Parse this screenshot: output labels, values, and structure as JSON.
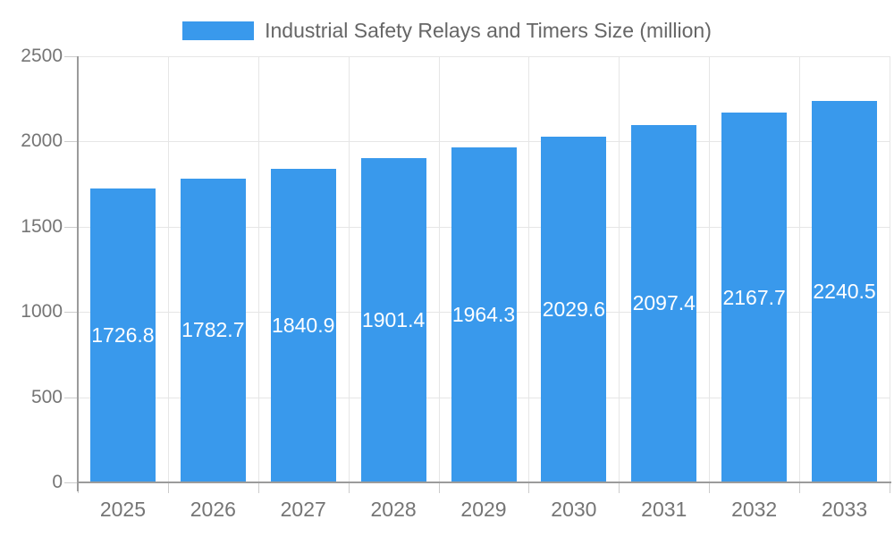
{
  "chart_data": {
    "type": "bar",
    "title": "Industrial Safety Relays and Timers Size (million)",
    "categories": [
      "2025",
      "2026",
      "2027",
      "2028",
      "2029",
      "2030",
      "2031",
      "2032",
      "2033"
    ],
    "values": [
      1726.8,
      1782.7,
      1840.9,
      1901.4,
      1964.3,
      2029.6,
      2097.4,
      2167.7,
      2240.5
    ],
    "xlabel": "",
    "ylabel": "",
    "ylim": [
      0,
      2500
    ],
    "yticks": [
      0,
      500,
      1000,
      1500,
      2000,
      2500
    ],
    "grid": true,
    "legend_position": "top-center",
    "value_label_position": "inside-center"
  },
  "colors": {
    "background": "#ffffff",
    "bar": "#3999ec",
    "grid": "#e6e6e6",
    "axis_line": "#9b9b9b",
    "tick": "#cccccc",
    "axis_text": "#757575",
    "legend_text": "#666666",
    "value_text": "#ffffff"
  }
}
